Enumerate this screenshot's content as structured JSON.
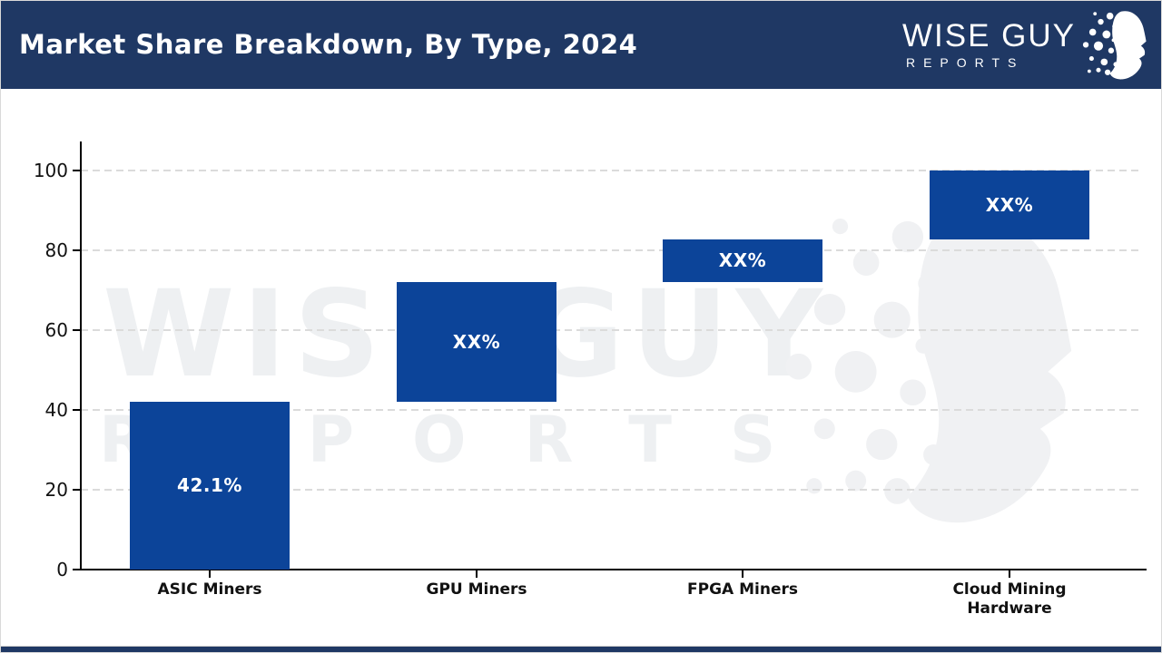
{
  "header": {
    "title": "Market Share Breakdown, By Type, 2024",
    "background_color": "#1f3864"
  },
  "logo": {
    "line1": "WISE GUY",
    "line2": "REPORTS"
  },
  "watermark": {
    "line1": "WISE GUY",
    "line2": "REPORTS"
  },
  "chart_data": {
    "type": "bar",
    "variant": "waterfall",
    "title": "Market Share Breakdown, By Type, 2024",
    "categories": [
      "ASIC Miners",
      "GPU Miners",
      "FPGA Miners",
      "Cloud Mining Hardware"
    ],
    "segments": [
      {
        "category": "ASIC Miners",
        "start": 0,
        "end": 42.1,
        "label": "42.1%"
      },
      {
        "category": "GPU Miners",
        "start": 42.1,
        "end": 72.1,
        "label": "XX%"
      },
      {
        "category": "FPGA Miners",
        "start": 72.1,
        "end": 82.8,
        "label": "XX%"
      },
      {
        "category": "Cloud Mining Hardware",
        "start": 82.8,
        "end": 100,
        "label": "XX%"
      }
    ],
    "ylim": [
      0,
      100
    ],
    "yticks": [
      0,
      20,
      40,
      60,
      80,
      100
    ],
    "xlabel": "",
    "ylabel": "",
    "grid": "horizontal-dashed",
    "legend": "none",
    "bar_color": "#0c4499",
    "bar_label_color": "#ffffff"
  }
}
